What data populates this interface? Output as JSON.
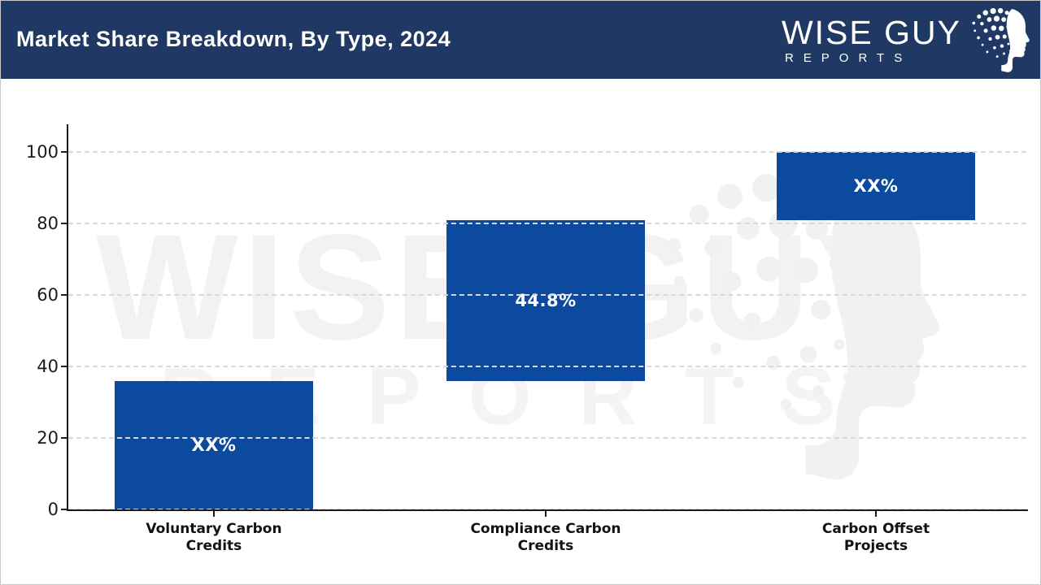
{
  "page": {
    "background": "#ffffff",
    "frame_border_color": "#c9c9c9"
  },
  "header": {
    "title": "Market Share Breakdown, By Type, 2024",
    "background": "#203864",
    "text_color": "#ffffff",
    "logo": {
      "line1": "WISE GUY",
      "line2": "REPORTS"
    }
  },
  "watermark": {
    "line1": "WISE GUY",
    "line2": "REPORTS"
  },
  "chart_data": {
    "type": "bar",
    "subtype": "waterfall",
    "title": "Market Share Breakdown, By Type, 2024",
    "categories": [
      [
        "Voluntary Carbon",
        "Credits"
      ],
      [
        "Compliance Carbon",
        "Credits"
      ],
      [
        "Carbon Offset",
        "Projects"
      ]
    ],
    "segments": [
      {
        "category": "Voluntary Carbon Credits",
        "start": 0,
        "end": 36,
        "label": "XX%"
      },
      {
        "category": "Compliance Carbon Credits",
        "start": 36,
        "end": 80.8,
        "label": "44.8%"
      },
      {
        "category": "Carbon Offset Projects",
        "start": 80.8,
        "end": 100,
        "label": "XX%"
      }
    ],
    "ylabel": "",
    "xlabel": "",
    "ylim": [
      0,
      100
    ],
    "yticks": [
      0,
      20,
      40,
      60,
      80,
      100
    ],
    "grid": "horizontal-dashed",
    "legend": "none",
    "bar_color": "#0b4a9e",
    "bar_label_color": "#ffffff",
    "axis_color": "#1a1a1a",
    "grid_color": "#d9d9d9",
    "category_label_color": "#111111"
  }
}
